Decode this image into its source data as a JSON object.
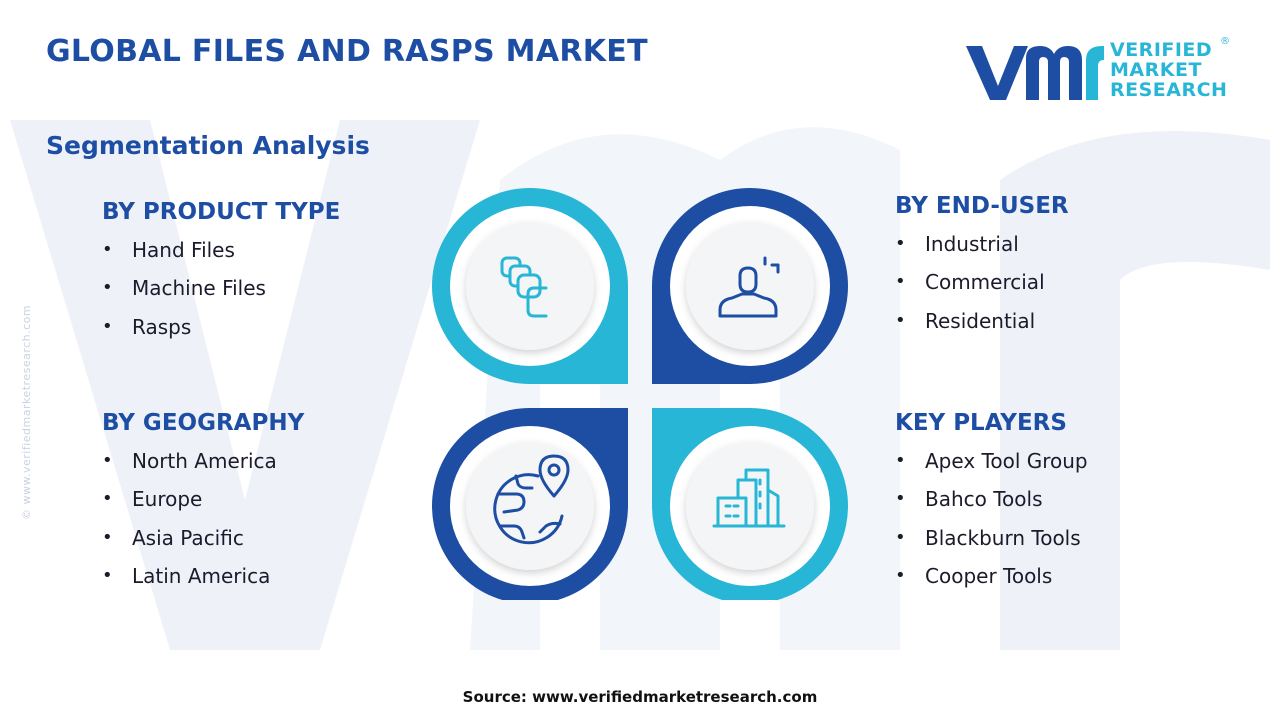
{
  "title": "GLOBAL FILES AND RASPS MARKET",
  "subtitle": "Segmentation Analysis",
  "logo": {
    "line1": "VERIFIED",
    "line2": "MARKET",
    "line3": "RESEARCH",
    "registered": "®"
  },
  "side_watermark": "© www.verifiedmarketresearch.com",
  "segments": [
    {
      "title": "BY PRODUCT TYPE",
      "items": [
        "Hand Files",
        "Machine Files",
        "Rasps"
      ],
      "icon": "files-stack-icon"
    },
    {
      "title": "BY  END-USER",
      "items": [
        "Industrial",
        "Commercial",
        "Residential"
      ],
      "icon": "user-icon"
    },
    {
      "title": "BY GEOGRAPHY",
      "items": [
        "North America",
        "Europe",
        "Asia Pacific",
        "Latin America"
      ],
      "icon": "globe-pin-icon"
    },
    {
      "title": "KEY PLAYERS",
      "items": [
        "Apex Tool Group",
        "Bahco Tools",
        "Blackburn Tools",
        "Cooper Tools"
      ],
      "icon": "buildings-icon"
    }
  ],
  "source": "Source: www.verifiedmarketresearch.com",
  "colors": {
    "dark_blue": "#1d4ea3",
    "light_blue": "#27b6d6",
    "watermark": "#eef2f8"
  }
}
